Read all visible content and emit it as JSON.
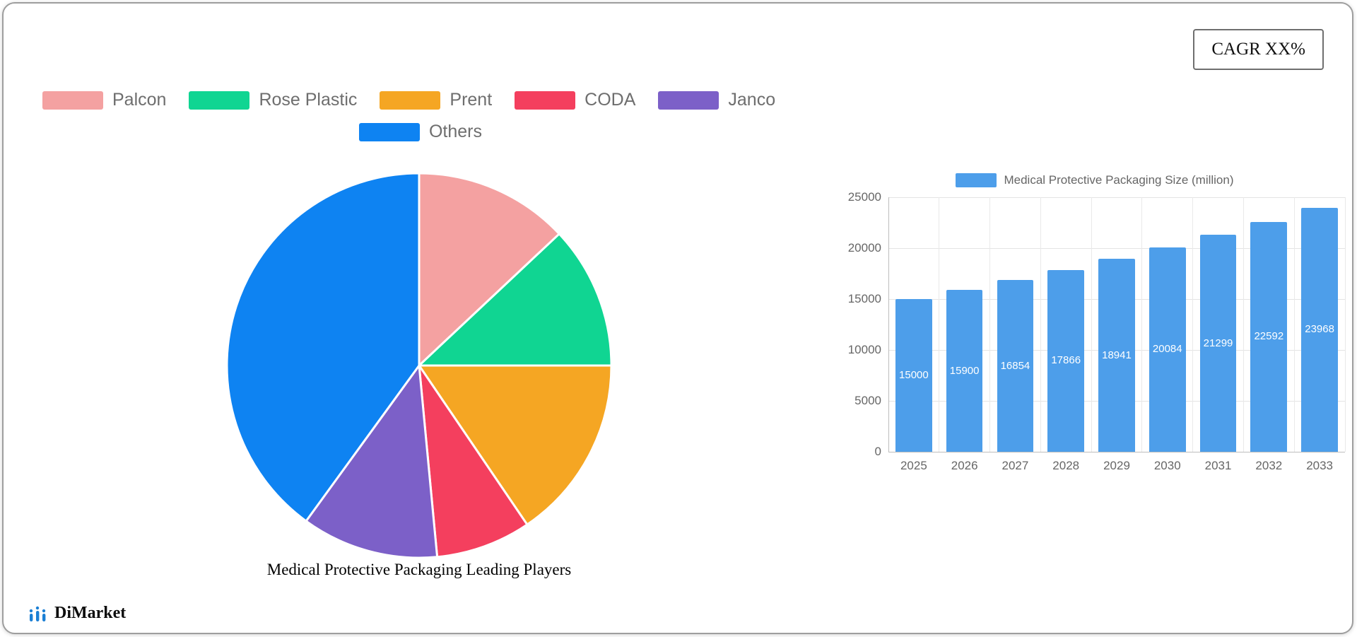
{
  "cagr_box": {
    "label": "CAGR XX%"
  },
  "legend": {
    "items": [
      {
        "label": "Palcon",
        "color": "#F4A1A1"
      },
      {
        "label": "Rose Plastic",
        "color": "#10D592"
      },
      {
        "label": "Prent",
        "color": "#F5A623"
      },
      {
        "label": "CODA",
        "color": "#F43F5E"
      },
      {
        "label": "Janco",
        "color": "#7C60C8"
      },
      {
        "label": "Others",
        "color": "#0E83F2"
      }
    ]
  },
  "brand": {
    "name": "DiMarket",
    "icon_color": "#1B7FD4"
  },
  "chart_data": [
    {
      "type": "pie",
      "title": "Medical Protective Packaging Leading Players",
      "labels": [
        "Palcon",
        "Rose Plastic",
        "Prent",
        "CODA",
        "Janco",
        "Others"
      ],
      "values": [
        13,
        12,
        15.5,
        8,
        11.5,
        40
      ],
      "colors": [
        "#F4A1A1",
        "#10D592",
        "#F5A623",
        "#F43F5E",
        "#7C60C8",
        "#0E83F2"
      ],
      "start_angle_deg": 0,
      "direction": "clockwise",
      "legend_position": "top",
      "separator_color": "#ffffff"
    },
    {
      "type": "bar",
      "categories": [
        "2025",
        "2026",
        "2027",
        "2028",
        "2029",
        "2030",
        "2031",
        "2032",
        "2033"
      ],
      "series": [
        {
          "name": "Medical Protective Packaging Size (million)",
          "values": [
            15000,
            15900,
            16854,
            17866,
            18941,
            20084,
            21299,
            22592,
            23968
          ]
        }
      ],
      "ylim": [
        0,
        25000
      ],
      "yticks": [
        0,
        5000,
        10000,
        15000,
        20000,
        25000
      ],
      "bar_color": "#4D9EEA",
      "value_label_color": "#ffffff",
      "grid": true,
      "legend_position": "top"
    }
  ]
}
